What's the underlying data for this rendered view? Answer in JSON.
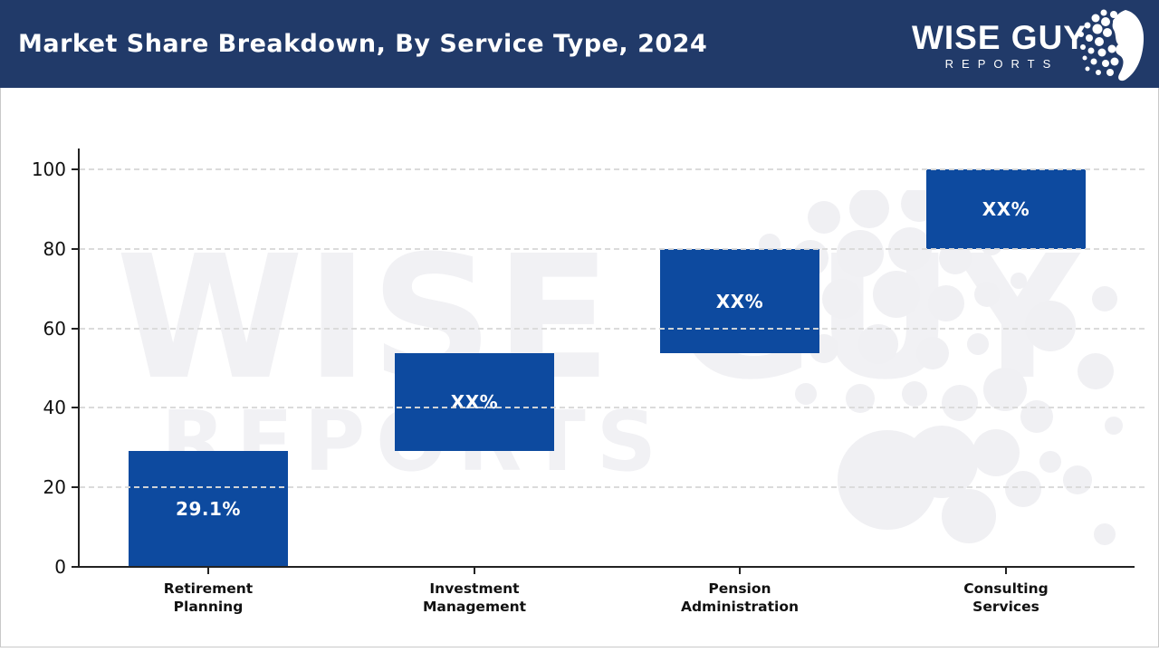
{
  "header": {
    "title": "Market Share Breakdown, By Service Type, 2024",
    "logo": {
      "name": "WISE GUY",
      "sub": "REPORTS"
    }
  },
  "watermark": {
    "big": "WISE GUY",
    "sub": "REPORTS"
  },
  "colors": {
    "header_bg": "#213a69",
    "bar": "#0d4a9f",
    "grid": "#d9d9d9",
    "axis": "#222222",
    "value_label": "#ffffff",
    "watermark": "#f1f1f4"
  },
  "chart_data": {
    "type": "bar",
    "subtype": "waterfall",
    "title": "Market Share Breakdown, By Service Type, 2024",
    "categories": [
      "Retirement Planning",
      "Investment Management",
      "Pension Administration",
      "Consulting Services"
    ],
    "segments": [
      {
        "category": "Retirement Planning",
        "start": 0,
        "end": 29.1,
        "label": "29.1%"
      },
      {
        "category": "Investment Management",
        "start": 29.1,
        "end": 53.7,
        "label": "XX%"
      },
      {
        "category": "Pension Administration",
        "start": 53.7,
        "end": 80,
        "label": "XX%"
      },
      {
        "category": "Consulting Services",
        "start": 80,
        "end": 100,
        "label": "XX%"
      }
    ],
    "ylim": [
      0,
      100
    ],
    "yticks": [
      0,
      20,
      40,
      60,
      80,
      100
    ],
    "xlabel": "",
    "ylabel": "",
    "grid": "horizontal-dashed",
    "legend": "none"
  }
}
